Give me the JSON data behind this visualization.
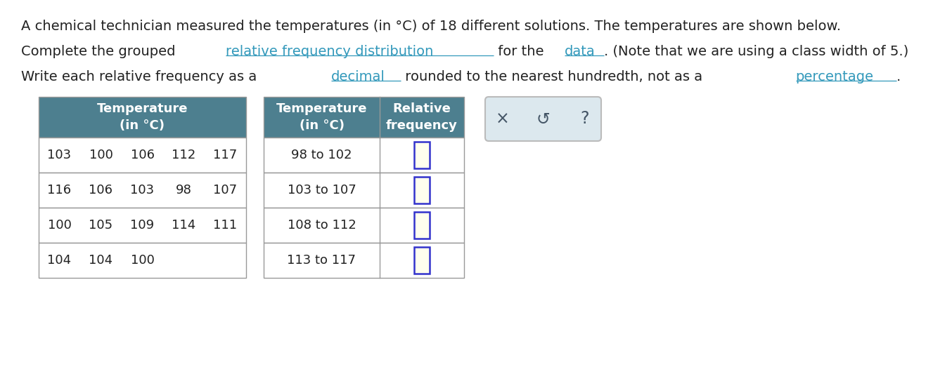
{
  "title_line1": "A chemical technician measured the temperatures (in °C) of 18 different solutions. The temperatures are shown below.",
  "title_line2_plain1": "Complete the grouped ",
  "title_line2_link1": "relative frequency distribution",
  "title_line2_plain2": " for the ",
  "title_line2_link2": "data",
  "title_line2_plain3": ". (Note that we are using a class width of 5.)",
  "title_line3_plain1": "Write each relative frequency as a ",
  "title_line3_link1": "decimal",
  "title_line3_plain2": " rounded to the nearest hundredth, not as a ",
  "title_line3_link2": "percentage",
  "title_line3_plain3": ".",
  "data_table_header_line1": "Temperature",
  "data_table_header_line2": "(in °C)",
  "data_values": [
    [
      103,
      100,
      106,
      112,
      117
    ],
    [
      116,
      106,
      103,
      98,
      107
    ],
    [
      100,
      105,
      109,
      114,
      111
    ],
    [
      104,
      104,
      100
    ]
  ],
  "freq_table_col1_header_line1": "Temperature",
  "freq_table_col1_header_line2": "(in °C)",
  "freq_table_col2_header_line1": "Relative",
  "freq_table_col2_header_line2": "frequency",
  "freq_rows": [
    "98 to 102",
    "103 to 107",
    "108 to 112",
    "113 to 117"
  ],
  "header_bg_color": "#4d7f8f",
  "header_text_color": "#ffffff",
  "table_border_color": "#999999",
  "link_color": "#3399bb",
  "input_box_border": "#3333cc",
  "input_box_fill": "#ffffee",
  "background_color": "#ffffff",
  "text_color": "#222222",
  "font_size_body": 14,
  "font_size_table_header": 13,
  "font_size_table_data": 13,
  "button_border_color": "#bbbbbb",
  "button_fill_color": "#dce8ee",
  "button_text_color": "#445566",
  "button_font_size": 15
}
